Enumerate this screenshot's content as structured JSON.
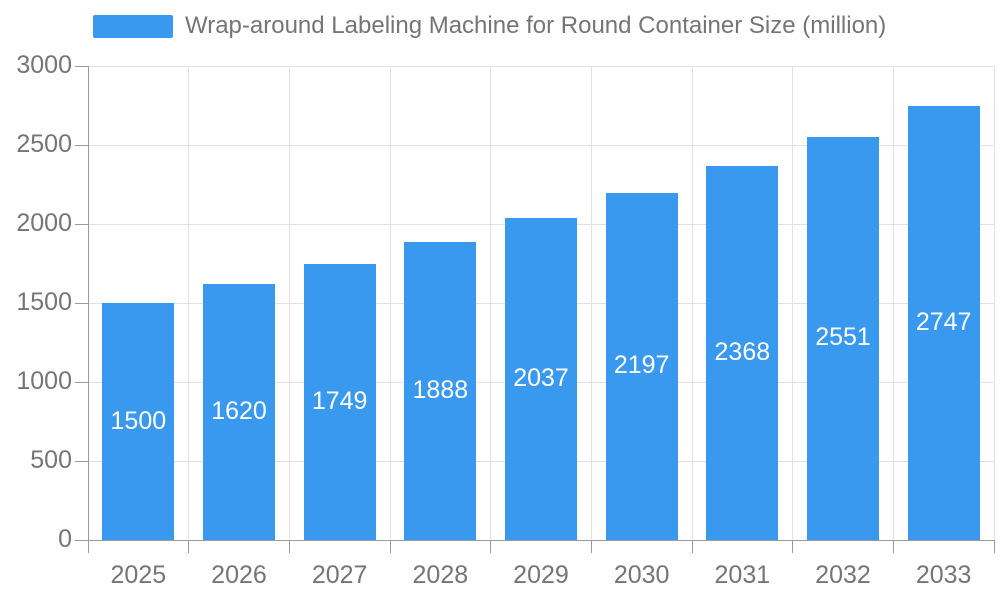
{
  "legend": {
    "label": "Wrap-around Labeling Machine for Round Container Size (million)",
    "swatch_color": "#3999EE"
  },
  "chart_data": {
    "type": "bar",
    "title": "Wrap-around Labeling Machine for Round Container Size (million)",
    "categories": [
      "2025",
      "2026",
      "2027",
      "2028",
      "2029",
      "2030",
      "2031",
      "2032",
      "2033"
    ],
    "series": [
      {
        "name": "Wrap-around Labeling Machine for Round Container Size (million)",
        "values": [
          1500,
          1620,
          1749,
          1888,
          2037,
          2197,
          2368,
          2551,
          2747
        ]
      }
    ],
    "xlabel": "",
    "ylabel": "",
    "ylim": [
      0,
      3000
    ],
    "ytick_step": 500,
    "yticks": [
      0,
      500,
      1000,
      1500,
      2000,
      2500,
      3000
    ],
    "grid": true,
    "legend_position": "top",
    "value_labels": "inside-center",
    "colors": {
      "bar": "#3999EE",
      "grid": "#e2e2e2",
      "axis": "#9b9b9b",
      "tick_label": "#757575",
      "value_label": "#ffffff"
    }
  }
}
